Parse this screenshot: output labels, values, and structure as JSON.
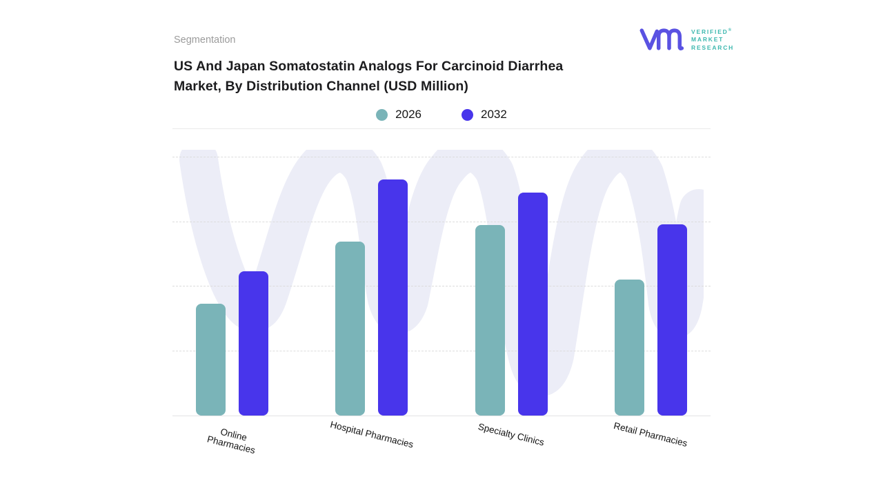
{
  "header": {
    "eyebrow": "Segmentation",
    "title_line1": "US And Japan Somatostatin Analogs For Carcinoid Diarrhea",
    "title_line2": "Market, By Distribution Channel (USD Million)"
  },
  "logo": {
    "line1": "VERIFIED",
    "line2": "MARKET",
    "line3": "RESEARCH",
    "registered": "®",
    "monogram_color": "#5a52e2",
    "text_color": "#3db8af"
  },
  "colors": {
    "series_2026": "#7ab4b8",
    "series_2032": "#4835eb",
    "watermark": "#ecedf7",
    "gridline": "#dcdcdc",
    "axis_line": "#e2e2e4",
    "divider": "#e9e9e9",
    "title_text": "#1c1c1e",
    "eyebrow_text": "#9b9b9b"
  },
  "chart_data": {
    "type": "bar",
    "title": "US And Japan Somatostatin Analogs For Carcinoid Diarrhea Market, By Distribution Channel (USD Million)",
    "categories": [
      "Online Pharmacies",
      "Hospital Pharmacies",
      "Specialty Clinics",
      "Retail Pharmacies"
    ],
    "display_labels": [
      "Online\nPharmacies",
      "Hospital Pharmacies",
      "Specialty Clinics",
      "Retail Pharmacies"
    ],
    "series": [
      {
        "name": "2026",
        "color": "#7ab4b8",
        "values": [
          1.73,
          2.7,
          2.95,
          2.11
        ]
      },
      {
        "name": "2032",
        "color": "#4835eb",
        "values": [
          2.24,
          3.66,
          3.46,
          2.96
        ]
      }
    ],
    "value_axis": {
      "visible_tick_labels": false,
      "gridline_count": 4,
      "ylim": [
        0,
        4.44
      ],
      "note": "No numeric y-axis labels shown; values estimated in gridline units (1 unit per dashed gridline). Units are USD Million per title."
    },
    "xlabel": "",
    "ylabel": "",
    "legend_position": "top-center",
    "grid": "horizontal dashed lines, light gray"
  }
}
